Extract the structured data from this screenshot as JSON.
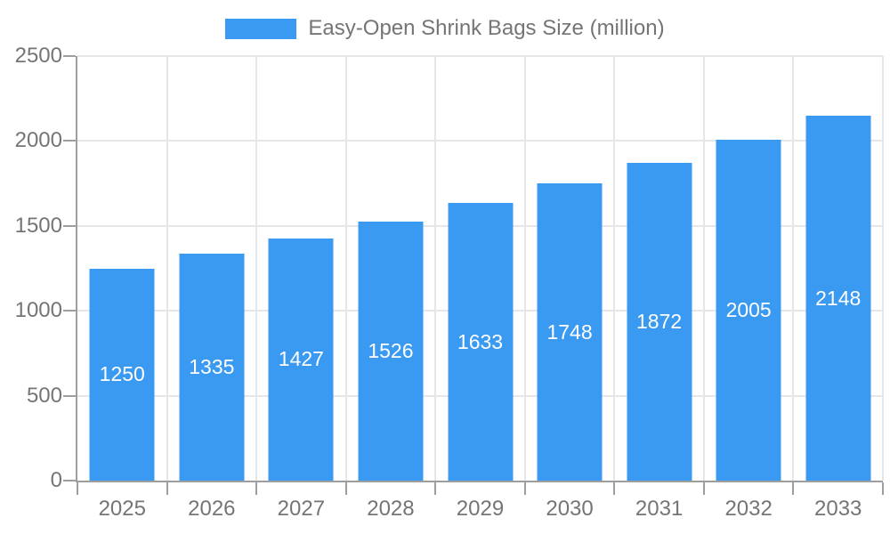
{
  "chart_data": {
    "type": "bar",
    "title": "Easy-Open Shrink Bags Size (million)",
    "legend": {
      "label": "Easy-Open Shrink Bags Size (million)",
      "position": "top-center"
    },
    "categories": [
      "2025",
      "2026",
      "2027",
      "2028",
      "2029",
      "2030",
      "2031",
      "2032",
      "2033"
    ],
    "values": [
      1250,
      1335,
      1427,
      1526,
      1633,
      1748,
      1872,
      2005,
      2148
    ],
    "xlabel": "",
    "ylabel": "",
    "ylim": [
      0,
      2500
    ],
    "y_ticks": [
      0,
      500,
      1000,
      1500,
      2000,
      2500
    ],
    "grid": true,
    "bar_labels_inside": true,
    "colors": {
      "bar": "#3A99F0",
      "bar_label": "#ffffff",
      "axis": "#9e9e9e",
      "grid": "#e6e6e6",
      "text": "#757575",
      "background": "#ffffff"
    }
  }
}
